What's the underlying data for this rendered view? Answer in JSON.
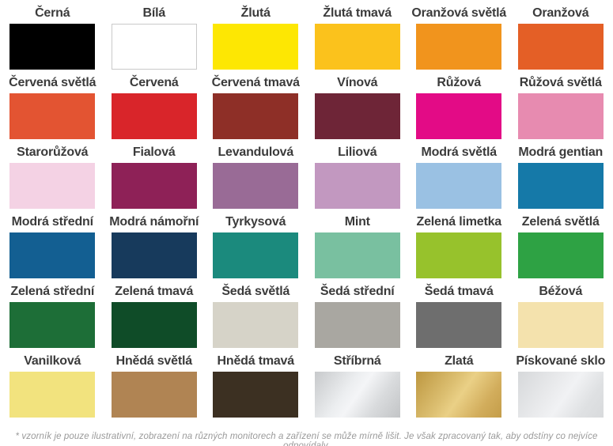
{
  "chart_data": {
    "type": "table",
    "title": "",
    "columns": 6,
    "rows": 6,
    "legend_position": "none",
    "swatches": [
      {
        "label": "Černá",
        "color": "#000000"
      },
      {
        "label": "Bílá",
        "color": "#ffffff",
        "border": true
      },
      {
        "label": "Žlutá",
        "color": "#fde703"
      },
      {
        "label": "Žlutá tmavá",
        "color": "#fbc21c"
      },
      {
        "label": "Oranžová světlá",
        "color": "#f1941d"
      },
      {
        "label": "Oranžová",
        "color": "#e45f26"
      },
      {
        "label": "Červená světlá",
        "color": "#e35432"
      },
      {
        "label": "Červená",
        "color": "#d9252a"
      },
      {
        "label": "Červená tmavá",
        "color": "#8e2f27"
      },
      {
        "label": "Vínová",
        "color": "#6e2537"
      },
      {
        "label": "Růžová",
        "color": "#e30b86"
      },
      {
        "label": "Růžová světlá",
        "color": "#e78bb0"
      },
      {
        "label": "Starorůžová",
        "color": "#f4d2e4"
      },
      {
        "label": "Fialová",
        "color": "#8e2157"
      },
      {
        "label": "Levandulová",
        "color": "#996b96"
      },
      {
        "label": "Liliová",
        "color": "#c298c0"
      },
      {
        "label": "Modrá světlá",
        "color": "#9ac1e3"
      },
      {
        "label": "Modrá gentian",
        "color": "#1579a8"
      },
      {
        "label": "Modrá střední",
        "color": "#135f92"
      },
      {
        "label": "Modrá námořní",
        "color": "#173a5c"
      },
      {
        "label": "Tyrkysová",
        "color": "#1b8a7d"
      },
      {
        "label": "Mint",
        "color": "#79c0a0"
      },
      {
        "label": "Zelená limetka",
        "color": "#97c22c"
      },
      {
        "label": "Zelená světlá",
        "color": "#2ea244"
      },
      {
        "label": "Zelená střední",
        "color": "#1d6e37"
      },
      {
        "label": "Zelená tmavá",
        "color": "#0f4c28"
      },
      {
        "label": "Šedá světlá",
        "color": "#d6d3c8"
      },
      {
        "label": "Šedá střední",
        "color": "#a9a7a1"
      },
      {
        "label": "Šedá tmavá",
        "color": "#6e6e6e"
      },
      {
        "label": "Béžová",
        "color": "#f4e2ad"
      },
      {
        "label": "Vanilková",
        "color": "#f2e37e"
      },
      {
        "label": "Hnědá světlá",
        "color": "#b08453"
      },
      {
        "label": "Hnědá tmavá",
        "color": "#3c3022"
      },
      {
        "label": "Stříbrná",
        "color": "linear-gradient(125deg, #c7c9cb 0%, #eceef0 38%, #f4f5f7 50%, #d9dbdd 72%, #c2c4c6 100%)"
      },
      {
        "label": "Zlatá",
        "color": "linear-gradient(125deg, #bd9740 0%, #dcbf71 38%, #ead086 52%, #d2ad5c 78%, #c49d49 100%)"
      },
      {
        "label": "Pískované sklo",
        "color": "linear-gradient(125deg, #d6d8da 0%, #eaebed 40%, #f1f2f4 55%, #dfe1e3 78%, #d8dadc 100%)"
      }
    ],
    "label_color": "#3b3b3b",
    "footnote": "* vzorník je pouze ilustrativní, zobrazení na různých monitorech a zařízení se může mírně lišit. Je však zpracovaný tak, aby odstíny co nejvíce odpovídaly."
  }
}
